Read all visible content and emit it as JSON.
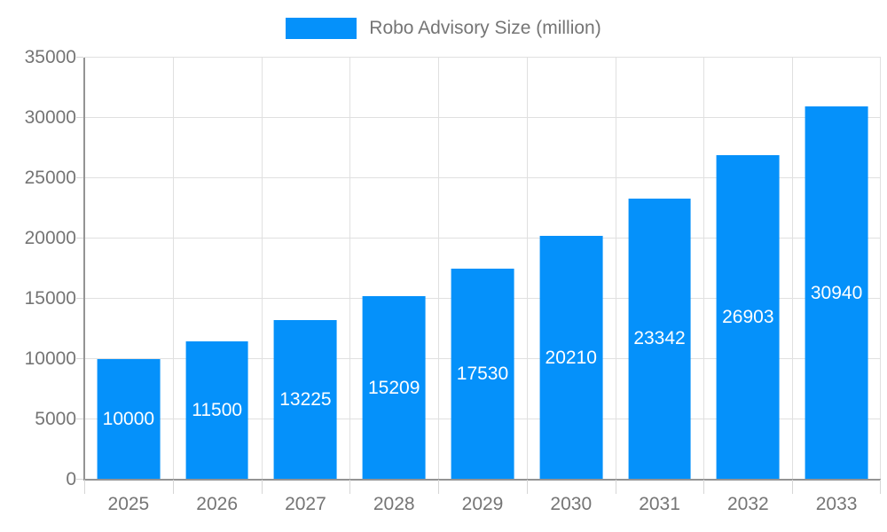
{
  "legend": {
    "label": "Robo Advisory Size (million)"
  },
  "chart_data": {
    "type": "bar",
    "title": "Robo Advisory Size (million)",
    "categories": [
      "2025",
      "2026",
      "2027",
      "2028",
      "2029",
      "2030",
      "2031",
      "2032",
      "2033"
    ],
    "values": [
      10000,
      11500,
      13225,
      15209,
      17530,
      20210,
      23342,
      26903,
      30940
    ],
    "value_labels": [
      "10000",
      "11500",
      "13225",
      "15209",
      "17530",
      "20210",
      "23342",
      "26903",
      "30940"
    ],
    "xlabel": "",
    "ylabel": "",
    "ylim": [
      0,
      35000
    ],
    "y_ticks": [
      0,
      5000,
      10000,
      15000,
      20000,
      25000,
      30000,
      35000
    ],
    "grid": true,
    "legend_position": "top",
    "colors": {
      "bar": "#0591fa",
      "value_label": "#ffffff",
      "axis_text": "#757575",
      "gridline": "#e0e0e0",
      "axis_line": "#949494",
      "background": "#ffffff"
    }
  }
}
